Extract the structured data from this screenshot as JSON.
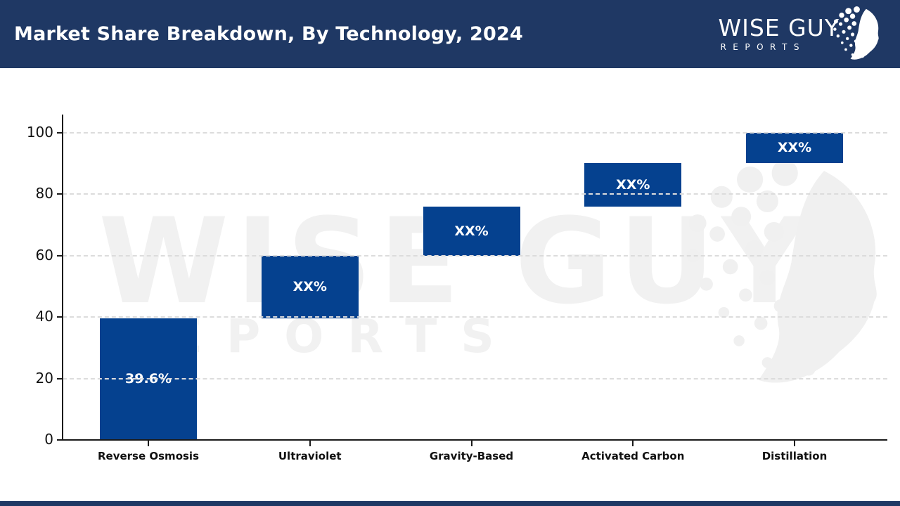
{
  "header": {
    "title": "Market Share Breakdown, By Technology, 2024",
    "logo": {
      "line1": "WISE GUY",
      "line2": "REPORTS"
    }
  },
  "watermark": {
    "line1": "WISE GUY",
    "line2": "REPORTS"
  },
  "colors": {
    "header_bg": "#1f3864",
    "footer_bg": "#1f3864",
    "bar": "#05418f",
    "bar_label": "#ffffff",
    "grid": "#dcdcdc",
    "axis": "#1a1a1a",
    "watermark": "#f1f1f1"
  },
  "chart_data": {
    "type": "bar",
    "subtype": "waterfall",
    "title": "Market Share Breakdown, By Technology, 2024",
    "categories": [
      "Reverse Osmosis",
      "Ultraviolet",
      "Gravity-Based",
      "Activated Carbon",
      "Distillation"
    ],
    "segments": [
      {
        "category": "Reverse Osmosis",
        "start": 0,
        "end": 39.6,
        "label": "39.6%"
      },
      {
        "category": "Ultraviolet",
        "start": 39.6,
        "end": 60,
        "label": "XX%"
      },
      {
        "category": "Gravity-Based",
        "start": 60,
        "end": 76,
        "label": "XX%"
      },
      {
        "category": "Activated Carbon",
        "start": 76,
        "end": 90,
        "label": "XX%"
      },
      {
        "category": "Distillation",
        "start": 90,
        "end": 100,
        "label": "XX%"
      }
    ],
    "yticks": [
      0,
      20,
      40,
      60,
      80,
      100
    ],
    "ylim": [
      0,
      105
    ],
    "xlabel": "",
    "ylabel": "",
    "grid": "horizontal-dashed",
    "legend": "none"
  }
}
